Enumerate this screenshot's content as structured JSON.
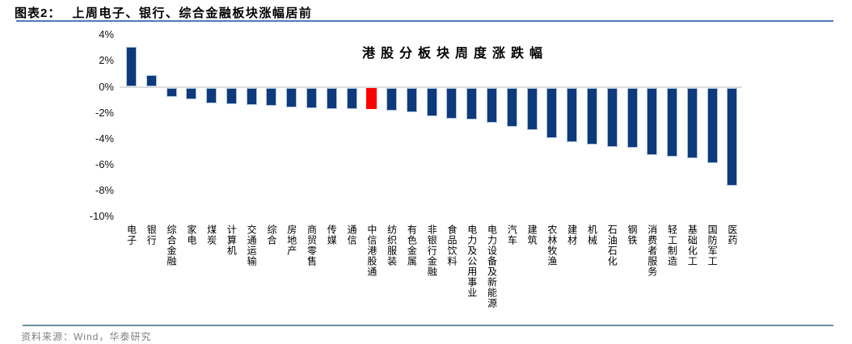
{
  "header": {
    "tag": "图表2：",
    "title": "上周电子、银行、综合金融板块涨幅居前"
  },
  "footer": {
    "source": "资料来源：Wind，华泰研究"
  },
  "chart_data": {
    "type": "bar",
    "title": "港股分板块周度涨跌幅",
    "unit": "%",
    "categories": [
      "电子",
      "银行",
      "综合金融",
      "家电",
      "煤炭",
      "计算机",
      "交通运输",
      "综合",
      "房地产",
      "商贸零售",
      "传媒",
      "通信",
      "中信港股通",
      "纺织服装",
      "有色金属",
      "非银行金融",
      "食品饮料",
      "电力及公用事业",
      "电力设备及新能源",
      "汽车",
      "建筑",
      "农林牧渔",
      "建材",
      "机械",
      "石油石化",
      "钢铁",
      "消费者服务",
      "轻工制造",
      "基础化工",
      "国防军工",
      "医药"
    ],
    "values": [
      3.1,
      0.9,
      -0.7,
      -0.9,
      -1.2,
      -1.3,
      -1.35,
      -1.4,
      -1.5,
      -1.6,
      -1.65,
      -1.65,
      -1.65,
      -1.8,
      -1.9,
      -2.2,
      -2.4,
      -2.45,
      -2.7,
      -3.0,
      -3.3,
      -3.9,
      -4.2,
      -4.4,
      -4.6,
      -4.65,
      -5.2,
      -5.35,
      -5.45,
      -5.8,
      -7.6
    ],
    "highlight_index": 12,
    "highlight_category": "中信港股通",
    "bar_color": "#0e3a7b",
    "highlight_color": "#ff0000",
    "bar_border_color": "#aec6e2",
    "zero_line_color": "#dcdcdc",
    "ylim": [
      -10,
      4
    ],
    "yticks": [
      4,
      2,
      0,
      -2,
      -4,
      -6,
      -8,
      -10
    ],
    "ytick_labels": [
      "4%",
      "2%",
      "0%",
      "-2%",
      "-4%",
      "-6%",
      "-8%",
      "-10%"
    ],
    "grid": false,
    "legend": "none",
    "xlabel": "",
    "ylabel": ""
  }
}
